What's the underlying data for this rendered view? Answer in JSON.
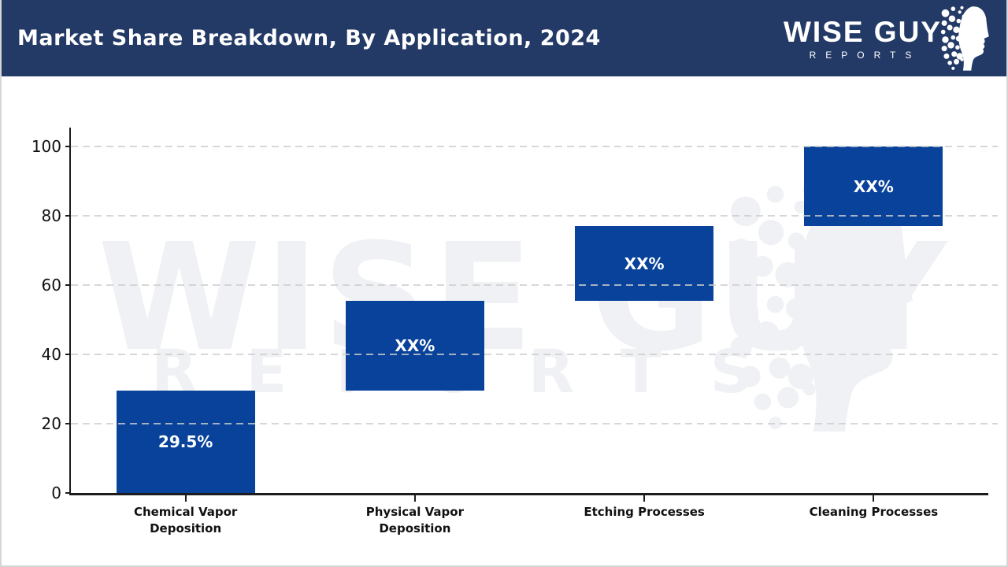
{
  "header": {
    "title": "Market Share Breakdown, By Application, 2024",
    "logo": {
      "line1": "WISE GUY",
      "line2": "REPORTS"
    }
  },
  "watermark": {
    "line1": "WISE GUY",
    "line2": "REPORTS"
  },
  "chart_data": {
    "type": "bar",
    "subtype": "waterfall",
    "title": "Market Share Breakdown, By Application, 2024",
    "categories": [
      "Chemical Vapor Deposition",
      "Physical Vapor Deposition",
      "Etching Processes",
      "Cleaning Processes"
    ],
    "segments": [
      {
        "category": "Chemical Vapor Deposition",
        "start": 0,
        "end": 29.5,
        "label": "29.5%"
      },
      {
        "category": "Physical Vapor Deposition",
        "start": 29.5,
        "end": 55.5,
        "label": "XX%"
      },
      {
        "category": "Etching Processes",
        "start": 55.5,
        "end": 77,
        "label": "XX%"
      },
      {
        "category": "Cleaning Processes",
        "start": 77,
        "end": 100,
        "label": "XX%"
      }
    ],
    "yticks": [
      0,
      20,
      40,
      60,
      80,
      100
    ],
    "ylim": [
      0,
      105
    ],
    "xlabel": "",
    "ylabel": "",
    "grid": "horizontal-dashed",
    "legend": "none",
    "bar_color": "#08429a",
    "bar_label_color": "#ffffff",
    "axis_color": "#1c1c1c",
    "header_color": "#233a66",
    "watermark_color": "#f0f1f4"
  }
}
